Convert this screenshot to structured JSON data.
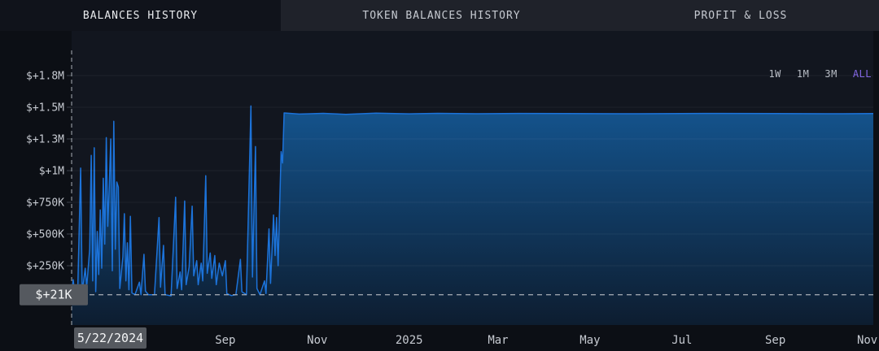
{
  "tabs": [
    {
      "label": "BALANCES HISTORY",
      "active": true
    },
    {
      "label": "TOKEN BALANCES HISTORY",
      "active": false
    },
    {
      "label": "PROFIT & LOSS",
      "active": false
    }
  ],
  "range_buttons": [
    {
      "label": "1W",
      "active": false
    },
    {
      "label": "1M",
      "active": false
    },
    {
      "label": "3M",
      "active": false
    },
    {
      "label": "ALL",
      "active": true
    }
  ],
  "colors": {
    "background": "#0c0f15",
    "plot_background": "#12161f",
    "tab_bar": "#1f222a",
    "accent_purple": "#8468e6",
    "line": "#1c73da",
    "fill_top": "#14548e",
    "fill_bottom": "#0d1d30",
    "crosshair": "#a9afb7",
    "badge_background": "#55595f",
    "badge_text": "#f4f5f6",
    "grid": "rgba(255,255,255,0.055)",
    "axis_text": "#c6cad1",
    "tick_mark": "#3c414a"
  },
  "chart_data": {
    "type": "area",
    "title": "Balances history",
    "legend": [],
    "grid": "horizontal",
    "x_domain": [
      "2024-05-22",
      "2025-11-05"
    ],
    "y_ticks": [
      {
        "label": "$+1.8M",
        "value": 1750000
      },
      {
        "label": "$+1.5M",
        "value": 1500000
      },
      {
        "label": "$+1.3M",
        "value": 1250000
      },
      {
        "label": "$+1M",
        "value": 1000000
      },
      {
        "label": "$+750K",
        "value": 750000
      },
      {
        "label": "$+500K",
        "value": 500000
      },
      {
        "label": "$+250K",
        "value": 250000
      }
    ],
    "x_ticks": [
      {
        "label": "Sep",
        "date": "2024-09-01"
      },
      {
        "label": "Nov",
        "date": "2024-11-01"
      },
      {
        "label": "2025",
        "date": "2025-01-01"
      },
      {
        "label": "Mar",
        "date": "2025-03-01"
      },
      {
        "label": "May",
        "date": "2025-05-01"
      },
      {
        "label": "Jul",
        "date": "2025-07-01"
      },
      {
        "label": "Sep",
        "date": "2025-09-01"
      },
      {
        "label": "Nov",
        "date": "2025-11-01"
      }
    ],
    "crosshair": {
      "date": "2024-05-22",
      "value": 21000,
      "value_label": "$+21K",
      "date_label": "5/22/2024"
    },
    "series": [
      {
        "name": "balance",
        "points": [
          [
            "2024-05-22",
            21000
          ],
          [
            "2024-05-23",
            140000
          ],
          [
            "2024-05-24",
            40000
          ],
          [
            "2024-05-25",
            90000
          ],
          [
            "2024-05-26",
            21000
          ],
          [
            "2024-05-28",
            1020000
          ],
          [
            "2024-05-29",
            35000
          ],
          [
            "2024-05-31",
            230000
          ],
          [
            "2024-06-01",
            80000
          ],
          [
            "2024-06-03",
            380000
          ],
          [
            "2024-06-04",
            1120000
          ],
          [
            "2024-06-05",
            130000
          ],
          [
            "2024-06-06",
            1180000
          ],
          [
            "2024-06-07",
            45000
          ],
          [
            "2024-06-08",
            520000
          ],
          [
            "2024-06-09",
            180000
          ],
          [
            "2024-06-10",
            690000
          ],
          [
            "2024-06-11",
            230000
          ],
          [
            "2024-06-12",
            940000
          ],
          [
            "2024-06-13",
            420000
          ],
          [
            "2024-06-14",
            1260000
          ],
          [
            "2024-06-15",
            560000
          ],
          [
            "2024-06-16",
            880000
          ],
          [
            "2024-06-17",
            1250000
          ],
          [
            "2024-06-18",
            210000
          ],
          [
            "2024-06-19",
            1390000
          ],
          [
            "2024-06-20",
            380000
          ],
          [
            "2024-06-21",
            910000
          ],
          [
            "2024-06-22",
            870000
          ],
          [
            "2024-06-23",
            70000
          ],
          [
            "2024-06-25",
            320000
          ],
          [
            "2024-06-26",
            660000
          ],
          [
            "2024-06-27",
            130000
          ],
          [
            "2024-06-28",
            430000
          ],
          [
            "2024-06-29",
            60000
          ],
          [
            "2024-06-30",
            640000
          ],
          [
            "2024-07-01",
            35000
          ],
          [
            "2024-07-03",
            21000
          ],
          [
            "2024-07-06",
            120000
          ],
          [
            "2024-07-07",
            21000
          ],
          [
            "2024-07-09",
            340000
          ],
          [
            "2024-07-10",
            50000
          ],
          [
            "2024-07-12",
            21000
          ],
          [
            "2024-07-16",
            21000
          ],
          [
            "2024-07-19",
            630000
          ],
          [
            "2024-07-20",
            80000
          ],
          [
            "2024-07-22",
            410000
          ],
          [
            "2024-07-23",
            21000
          ],
          [
            "2024-07-27",
            12000
          ],
          [
            "2024-07-30",
            790000
          ],
          [
            "2024-07-31",
            70000
          ],
          [
            "2024-08-02",
            200000
          ],
          [
            "2024-08-03",
            60000
          ],
          [
            "2024-08-05",
            760000
          ],
          [
            "2024-08-06",
            100000
          ],
          [
            "2024-08-08",
            240000
          ],
          [
            "2024-08-10",
            720000
          ],
          [
            "2024-08-11",
            170000
          ],
          [
            "2024-08-13",
            290000
          ],
          [
            "2024-08-14",
            100000
          ],
          [
            "2024-08-16",
            270000
          ],
          [
            "2024-08-17",
            130000
          ],
          [
            "2024-08-19",
            960000
          ],
          [
            "2024-08-20",
            190000
          ],
          [
            "2024-08-22",
            350000
          ],
          [
            "2024-08-23",
            150000
          ],
          [
            "2024-08-25",
            330000
          ],
          [
            "2024-08-26",
            100000
          ],
          [
            "2024-08-28",
            270000
          ],
          [
            "2024-08-30",
            170000
          ],
          [
            "2024-09-01",
            290000
          ],
          [
            "2024-09-02",
            30000
          ],
          [
            "2024-09-05",
            14000
          ],
          [
            "2024-09-08",
            21000
          ],
          [
            "2024-09-11",
            300000
          ],
          [
            "2024-09-12",
            45000
          ],
          [
            "2024-09-15",
            21000
          ],
          [
            "2024-09-18",
            1510000
          ],
          [
            "2024-09-19",
            160000
          ],
          [
            "2024-09-21",
            1190000
          ],
          [
            "2024-09-22",
            70000
          ],
          [
            "2024-09-24",
            21000
          ],
          [
            "2024-09-27",
            130000
          ],
          [
            "2024-09-28",
            30000
          ],
          [
            "2024-09-30",
            540000
          ],
          [
            "2024-10-01",
            110000
          ],
          [
            "2024-10-03",
            650000
          ],
          [
            "2024-10-04",
            330000
          ],
          [
            "2024-10-05",
            630000
          ],
          [
            "2024-10-06",
            250000
          ],
          [
            "2024-10-07",
            700000
          ],
          [
            "2024-10-08",
            1150000
          ],
          [
            "2024-10-09",
            1060000
          ],
          [
            "2024-10-10",
            1455000
          ],
          [
            "2024-10-20",
            1446000
          ],
          [
            "2024-11-05",
            1452000
          ],
          [
            "2024-11-20",
            1444000
          ],
          [
            "2024-12-10",
            1453000
          ],
          [
            "2025-01-01",
            1448000
          ],
          [
            "2025-01-20",
            1452000
          ],
          [
            "2025-02-15",
            1449000
          ],
          [
            "2025-03-15",
            1451000
          ],
          [
            "2025-04-15",
            1450000
          ],
          [
            "2025-06-01",
            1449000
          ],
          [
            "2025-07-15",
            1451000
          ],
          [
            "2025-09-01",
            1450000
          ],
          [
            "2025-10-15",
            1449000
          ],
          [
            "2025-11-05",
            1450000
          ]
        ]
      }
    ]
  }
}
